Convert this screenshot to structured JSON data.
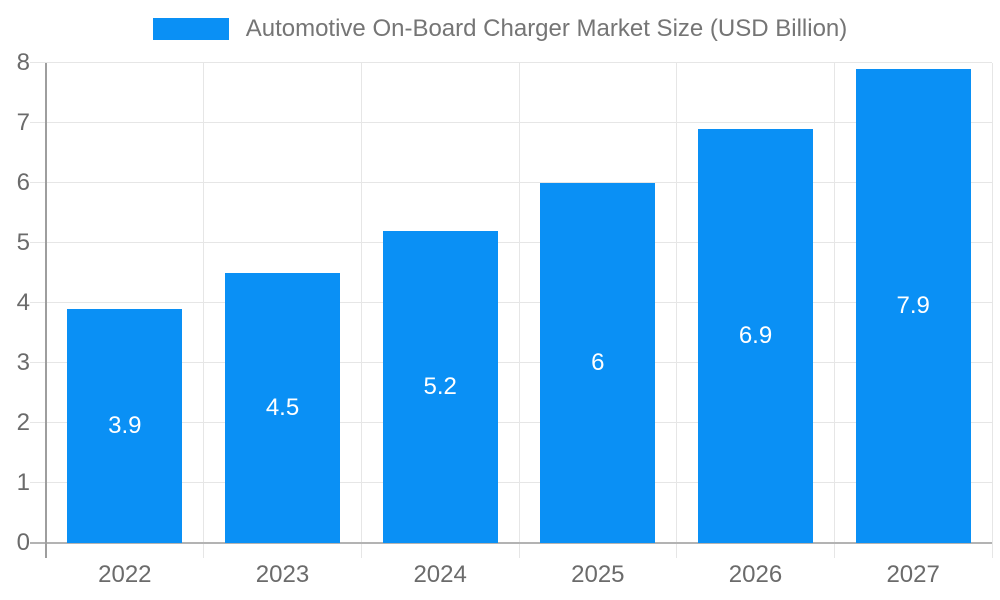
{
  "legend": {
    "series_label": "Automotive On-Board Charger Market Size (USD Billion)"
  },
  "colors": {
    "bar": "#0a90f5",
    "grid": "#e6e6e6",
    "axis_line": "#9e9e9e",
    "baseline": "#b3b3b3",
    "axis_text": "#6b6b6b",
    "legend_text": "#757575",
    "value_label": "#ffffff",
    "background": "#ffffff"
  },
  "chart_data": {
    "type": "bar",
    "title": "Automotive On-Board Charger Market Size (USD Billion)",
    "categories": [
      "2022",
      "2023",
      "2024",
      "2025",
      "2026",
      "2027"
    ],
    "values": [
      3.9,
      4.5,
      5.2,
      6,
      6.9,
      7.9
    ],
    "series": [
      {
        "name": "Automotive On-Board Charger Market Size (USD Billion)",
        "values": [
          3.9,
          4.5,
          5.2,
          6,
          6.9,
          7.9
        ]
      }
    ],
    "xlabel": "",
    "ylabel": "",
    "ylim": [
      0,
      8
    ],
    "yticks": [
      0,
      1,
      2,
      3,
      4,
      5,
      6,
      7,
      8
    ],
    "grid": true,
    "legend_position": "top-center",
    "value_labels": "inside-center",
    "value_label_texts": [
      "3.9",
      "4.5",
      "5.2",
      "6",
      "6.9",
      "7.9"
    ]
  }
}
